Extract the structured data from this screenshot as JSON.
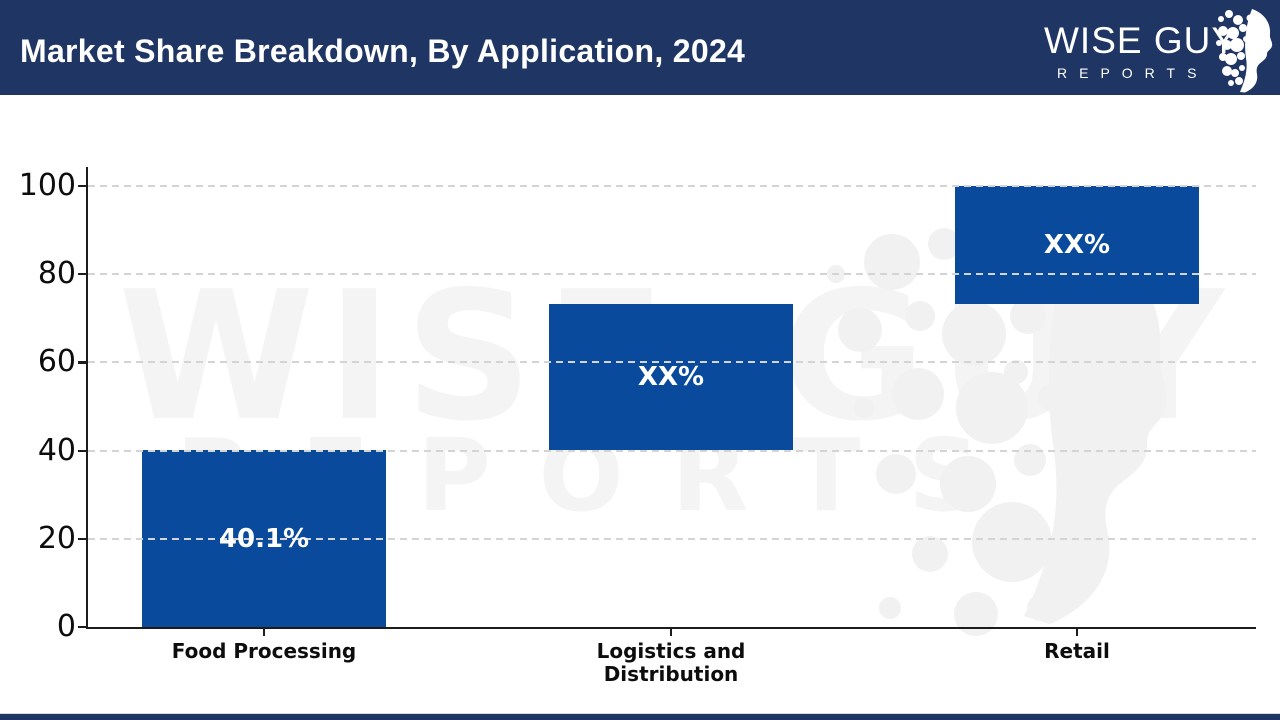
{
  "header": {
    "title": "Market Share Breakdown, By Application, 2024",
    "logo": {
      "line1": "WISE GUY",
      "line2": "REPORTS"
    }
  },
  "watermark": {
    "line1": "WISE GUY",
    "line2": "REPORTS"
  },
  "chart_data": {
    "type": "bar",
    "subtype": "waterfall-stacked-breakdown",
    "title": "Market Share Breakdown, By Application, 2024",
    "categories": [
      "Food Processing",
      "Logistics and Distribution",
      "Retail"
    ],
    "category_label_lines": [
      [
        "Food Processing"
      ],
      [
        "Logistics and",
        "Distribution"
      ],
      [
        "Retail"
      ]
    ],
    "series": [
      {
        "name": "Market Share (%)",
        "segments": [
          {
            "category": "Food Processing",
            "start": 0,
            "end": 40.1,
            "value": 40.1,
            "label": "40.1%"
          },
          {
            "category": "Logistics and Distribution",
            "start": 40.1,
            "end": 73.2,
            "value": 33.1,
            "label": "XX%"
          },
          {
            "category": "Retail",
            "start": 73.2,
            "end": 100,
            "value": 26.8,
            "label": "XX%"
          }
        ]
      }
    ],
    "ylim": [
      0,
      100
    ],
    "yticks": [
      0,
      20,
      40,
      60,
      80,
      100
    ],
    "xlabel": "",
    "ylabel": "",
    "grid": "horizontal dashed gridlines drawn above bars",
    "legend": "none",
    "bar_color": "#0a4a9c",
    "bar_label_color": "#ffffff"
  },
  "colors": {
    "header_bg": "#1f3563",
    "footer_bg": "#1f3563",
    "bar": "#0a4a9c",
    "grid": "#d4d4d4",
    "axis": "#1c1c1c",
    "tick_text": "#0d0d0d",
    "watermark": "#f4f4f4"
  }
}
